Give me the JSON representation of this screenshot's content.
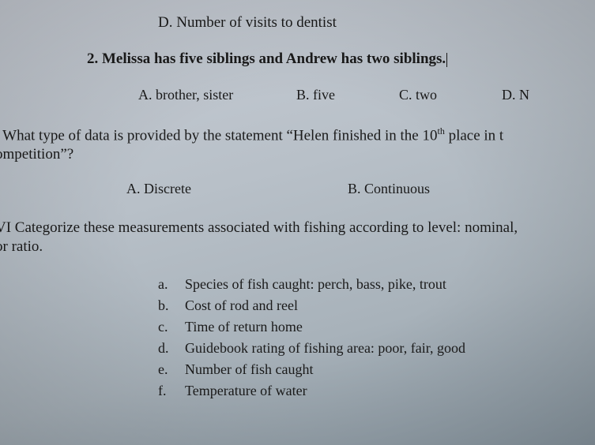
{
  "optionD": "D. Number of visits to dentist",
  "question2": "2. Melissa has five siblings and Andrew has two siblings.",
  "q2options": {
    "a": "A. brother, sister",
    "b": "B. five",
    "c": "C. two",
    "d": "D. N"
  },
  "questionCut": {
    "line1_pre": ". What type of data is provided by the statement “Helen finished in the 10",
    "line1_sup": "th",
    "line1_post": " place in t",
    "line2": "ompetition”?"
  },
  "cutOptions": {
    "a": "A. Discrete",
    "b": "B. Continuous"
  },
  "categorize": {
    "line1": "VI Categorize these measurements associated with fishing according to level: nominal,",
    "line2": "or ratio."
  },
  "list": {
    "a": {
      "letter": "a.",
      "text": "Species of fish caught: perch, bass, pike, trout"
    },
    "b": {
      "letter": "b.",
      "text": "Cost of rod and reel"
    },
    "c": {
      "letter": "c.",
      "text": "Time of return home"
    },
    "d": {
      "letter": "d.",
      "text": "Guidebook rating of fishing area: poor, fair, good"
    },
    "e": {
      "letter": "e.",
      "text": "Number of fish caught"
    },
    "f": {
      "letter": "f.",
      "text": "Temperature of water"
    }
  }
}
